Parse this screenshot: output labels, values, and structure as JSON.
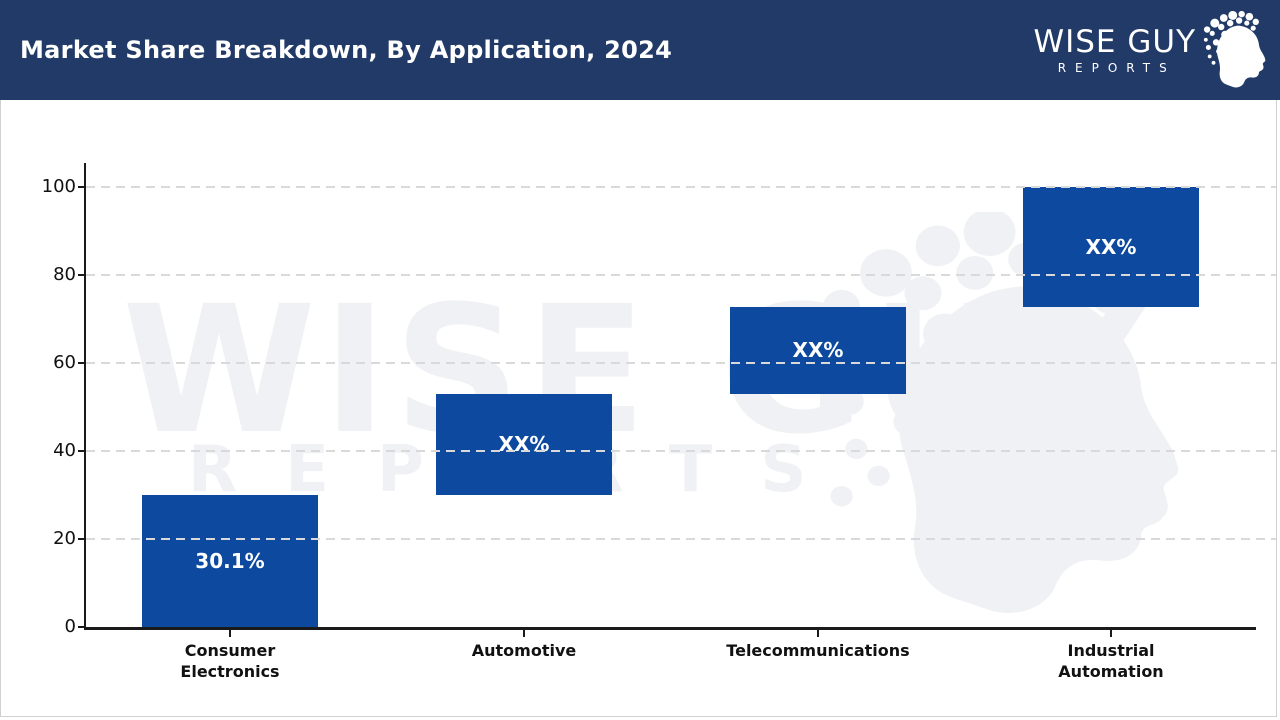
{
  "header": {
    "title": "Market Share Breakdown, By Application, 2024",
    "logo": {
      "name": "WISE GUY",
      "tagline": "REPORTS"
    }
  },
  "watermark": {
    "name": "WISE GUY",
    "tagline": "REPORTS"
  },
  "colors": {
    "header_bg": "#223a68",
    "bar_blue": "#0d4a9f",
    "bar_label": "#ffffff",
    "gridline": "#d9d9d9",
    "watermark": "#f0f1f4"
  },
  "chart_data": {
    "type": "bar",
    "subtype": "waterfall",
    "title": "Market Share Breakdown, By Application, 2024",
    "categories": [
      "Consumer Electronics",
      "Automotive",
      "Telecommunications",
      "Industrial Automation"
    ],
    "series": [
      {
        "name": "Market Share",
        "segments": [
          {
            "category": "Consumer Electronics",
            "start": 0,
            "end": 30.1,
            "value": 30.1,
            "label": "30.1%"
          },
          {
            "category": "Automotive",
            "start": 30.1,
            "end": 53,
            "value": 22.9,
            "label": "XX%"
          },
          {
            "category": "Telecommunications",
            "start": 53,
            "end": 72.7,
            "value": 19.7,
            "label": "XX%"
          },
          {
            "category": "Industrial Automation",
            "start": 72.7,
            "end": 100,
            "value": 27.3,
            "label": "XX%"
          }
        ]
      }
    ],
    "xlabel": "",
    "ylabel": "",
    "ylim": [
      0,
      100
    ],
    "yticks": [
      0,
      20,
      40,
      60,
      80,
      100
    ],
    "grid": {
      "horizontal": true,
      "style": "dashed",
      "grid_above_bars": true
    },
    "legend": "none"
  }
}
